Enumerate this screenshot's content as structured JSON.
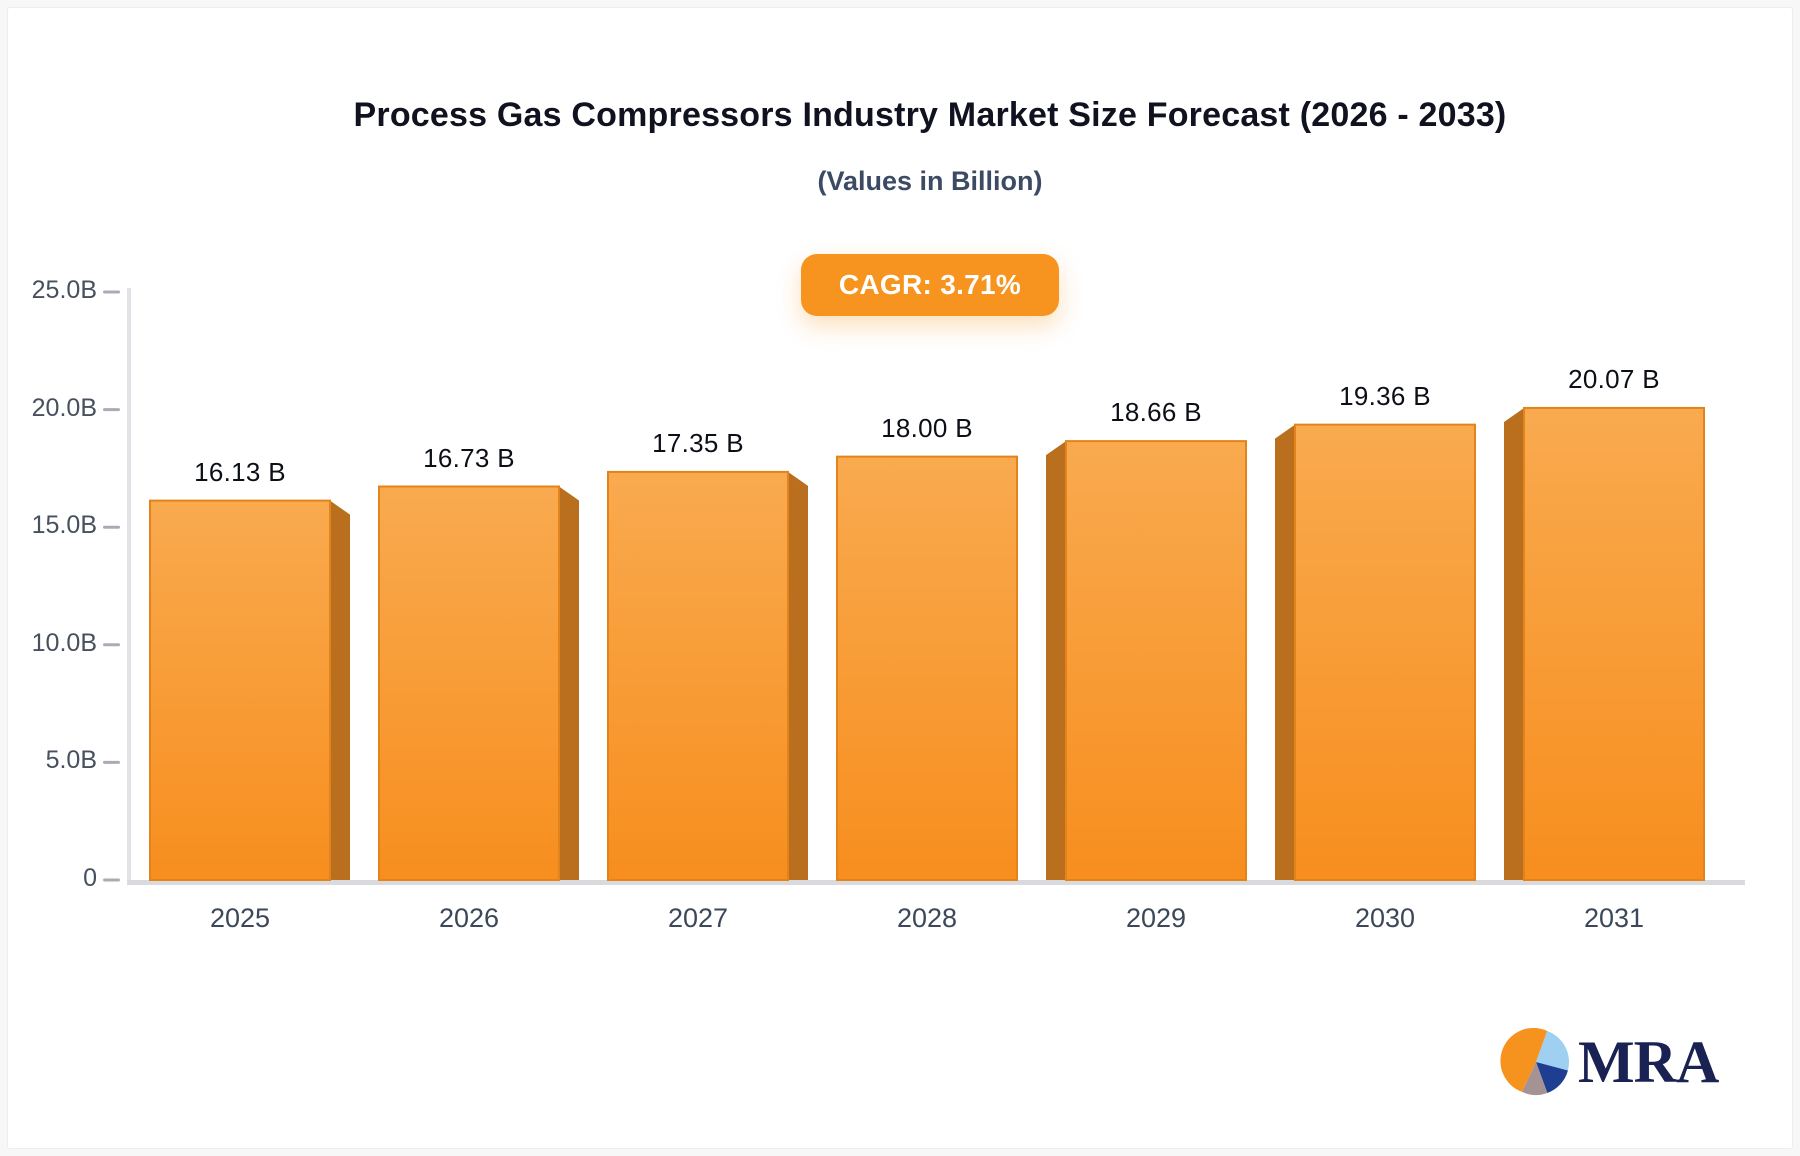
{
  "chart_data": {
    "type": "bar",
    "title": "Process Gas Compressors Industry Market Size Forecast (2026 - 2033)",
    "subtitle": "(Values in Billion)",
    "annotation_cagr": "CAGR: 3.71%",
    "categories": [
      "2025",
      "2026",
      "2027",
      "2028",
      "2029",
      "2030",
      "2031"
    ],
    "values": [
      16.13,
      16.73,
      17.35,
      18.0,
      18.66,
      19.36,
      20.07
    ],
    "value_labels": [
      "16.13 B",
      "16.73 B",
      "17.35 B",
      "18.00 B",
      "18.66 B",
      "19.36 B",
      "20.07 B"
    ],
    "xlabel": "",
    "ylabel": "",
    "ylim": [
      0,
      25
    ],
    "yticks": [
      0,
      5,
      10,
      15,
      20,
      25
    ],
    "ytick_labels": [
      "0",
      "5.0B",
      "10.0B",
      "15.0B",
      "20.0B",
      "25.0B"
    ],
    "grid": false,
    "legend": false,
    "bar_style": "3d-extruded, perspective toward center bar (2028 flat, left bars show right side, right bars show left side)"
  },
  "logo": {
    "text": "MRA"
  },
  "colors": {
    "frame_bg": "#f7f7f8",
    "bar_top": "#f9aa4f",
    "bar_bottom": "#f78e1e",
    "bar_border": "#e2831c",
    "bar_side": "#b96f1e",
    "badge_bg": "#f6941f",
    "axis_line": "#e2e3e7",
    "baseline": "#d9dadd",
    "tick": "#a7adb6",
    "tick_text": "#47505f",
    "x_label_text": "#3c4859",
    "value_text": "#0c0f16",
    "title_text": "#10131f",
    "subtitle_text": "#3c4a64",
    "logo_navy": "#1a2153",
    "logo_orange": "#f6921e",
    "logo_lightblue": "#9fd0f2",
    "logo_darkblue": "#1d3e91",
    "logo_gray": "#a59393"
  }
}
